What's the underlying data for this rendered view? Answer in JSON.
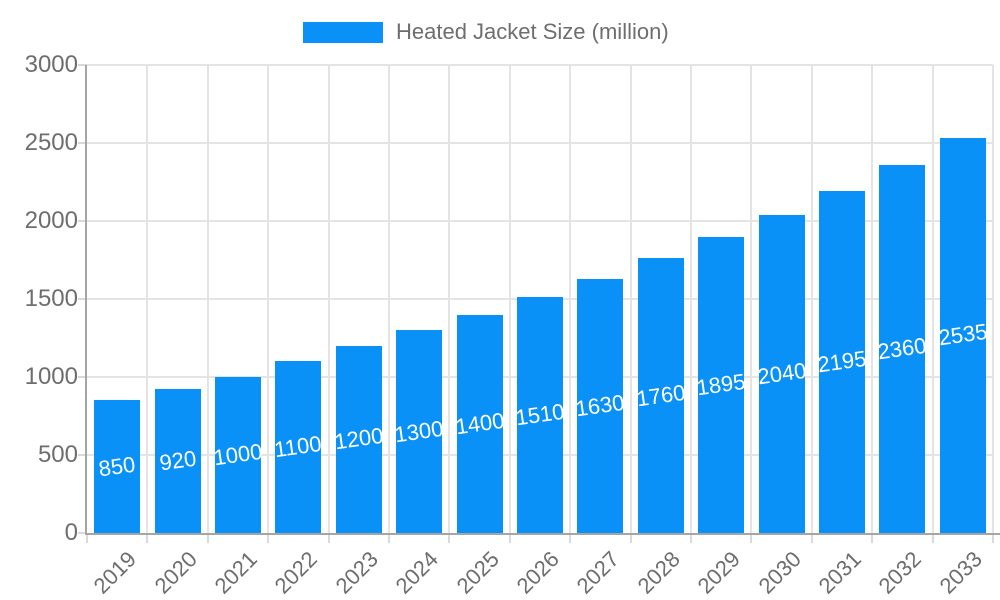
{
  "chart_data": {
    "type": "bar",
    "title": "",
    "legend": "Heated Jacket Size (million)",
    "legend_position": "top",
    "categories": [
      "2019",
      "2020",
      "2021",
      "2022",
      "2023",
      "2024",
      "2025",
      "2026",
      "2027",
      "2028",
      "2029",
      "2030",
      "2031",
      "2032",
      "2033"
    ],
    "series": [
      {
        "name": "Heated Jacket Size (million)",
        "values": [
          850,
          920,
          1000,
          1100,
          1200,
          1300,
          1400,
          1510,
          1630,
          1760,
          1895,
          2040,
          2195,
          2360,
          2535
        ]
      }
    ],
    "xlabel": "",
    "ylabel": "",
    "ylim": [
      0,
      3000
    ],
    "yticks": [
      0,
      500,
      1000,
      1500,
      2000,
      2500,
      3000
    ],
    "grid": true,
    "bar_value_labels_shown": true,
    "colors": {
      "bar": "#0991F7",
      "bar_value_label": "#FFFFFF",
      "axis_text": "#6E6E6E",
      "gridline": "#E4E4E4",
      "axis_line": "#A5A5A5",
      "tick": "#D9D9D9",
      "background": "#FFFFFF"
    }
  }
}
